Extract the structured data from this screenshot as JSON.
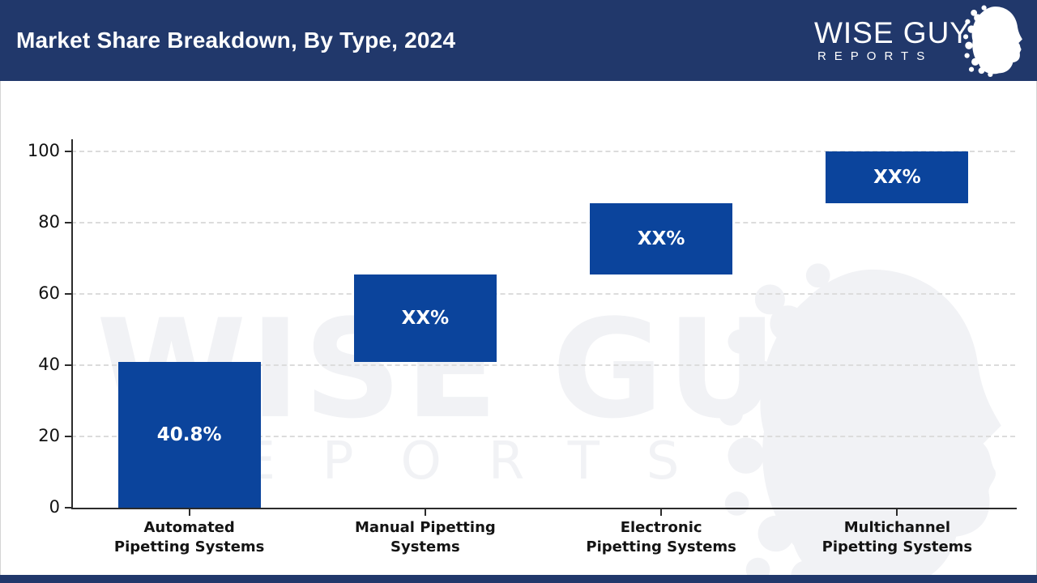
{
  "header": {
    "title": "Market Share Breakdown, By Type, 2024"
  },
  "brand": {
    "name": "WISE GUY",
    "sub": "REPORTS"
  },
  "watermark": {
    "name": "WISE GUY",
    "sub": "REPORTS"
  },
  "colors": {
    "header_bg": "#21386b",
    "footer_bg": "#21386b",
    "bar": "#0b449c",
    "grid": "#dcdcdc",
    "axis": "#2b2b2b",
    "bar_label": "#ffffff",
    "watermark": "#f1f2f5"
  },
  "chart_data": {
    "type": "bar",
    "variant": "waterfall",
    "title": "Market Share Breakdown, By Type, 2024",
    "categories": [
      "Automated\nPipetting Systems",
      "Manual Pipetting\nSystems",
      "Electronic\nPipetting Systems",
      "Multichannel\nPipetting Systems"
    ],
    "segments": [
      {
        "start": 0,
        "end": 40.8,
        "label": "40.8%"
      },
      {
        "start": 40.8,
        "end": 65.5,
        "label": "XX%"
      },
      {
        "start": 65.5,
        "end": 85.5,
        "label": "XX%"
      },
      {
        "start": 85.5,
        "end": 100,
        "label": "XX%"
      }
    ],
    "yticks": [
      0,
      20,
      40,
      60,
      80,
      100
    ],
    "ylim": [
      0,
      100
    ],
    "xlabel": "",
    "ylabel": "",
    "grid": "horizontal-dashed",
    "legend": "none"
  }
}
